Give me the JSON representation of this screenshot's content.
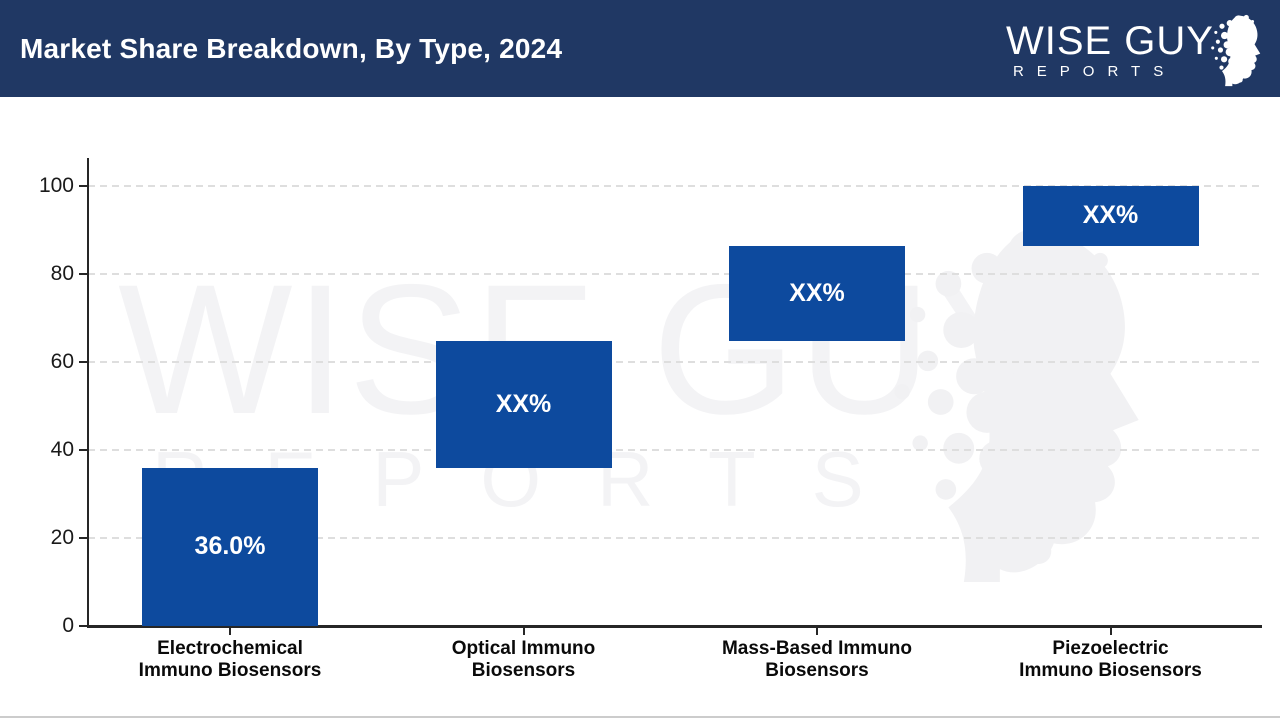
{
  "header": {
    "title": "Market Share Breakdown, By Type, 2024",
    "logo": {
      "wordmark": "WISE GUY",
      "sub": "REPORTS"
    }
  },
  "watermark": {
    "line1": "WISE GUY",
    "line2": "REPORTS",
    "face_icon": "wiseguy-face"
  },
  "colors": {
    "header_bg": "#203864",
    "bar": "#0d4a9e",
    "bar_label": "#ffffff",
    "axis": "#262626",
    "grid": "#dedede",
    "tick_label": "#1a1a1a",
    "category_label": "#0a0a0a",
    "watermark": "#f2f2f4",
    "background": "#ffffff"
  },
  "chart_data": {
    "type": "bar",
    "variant": "waterfall-floating-bars",
    "title": "Market Share Breakdown, By Type, 2024",
    "categories": [
      [
        "Electrochemical",
        "Immuno Biosensors"
      ],
      [
        "Optical Immuno",
        "Biosensors"
      ],
      [
        "Mass-Based Immuno",
        "Biosensors"
      ],
      [
        "Piezoelectric",
        "Immuno Biosensors"
      ]
    ],
    "bars": [
      {
        "start": 0,
        "end": 36.0,
        "label": "36.0%"
      },
      {
        "start": 36.0,
        "end": 64.8,
        "label": "XX%"
      },
      {
        "start": 64.8,
        "end": 86.4,
        "label": "XX%"
      },
      {
        "start": 86.4,
        "end": 100.0,
        "label": "XX%"
      }
    ],
    "ylabel": "",
    "xlabel": "",
    "ylim": [
      0,
      100
    ],
    "yticks": [
      0,
      20,
      40,
      60,
      80,
      100
    ],
    "grid": {
      "horizontal": true,
      "style": "dashed"
    },
    "legend": null
  }
}
